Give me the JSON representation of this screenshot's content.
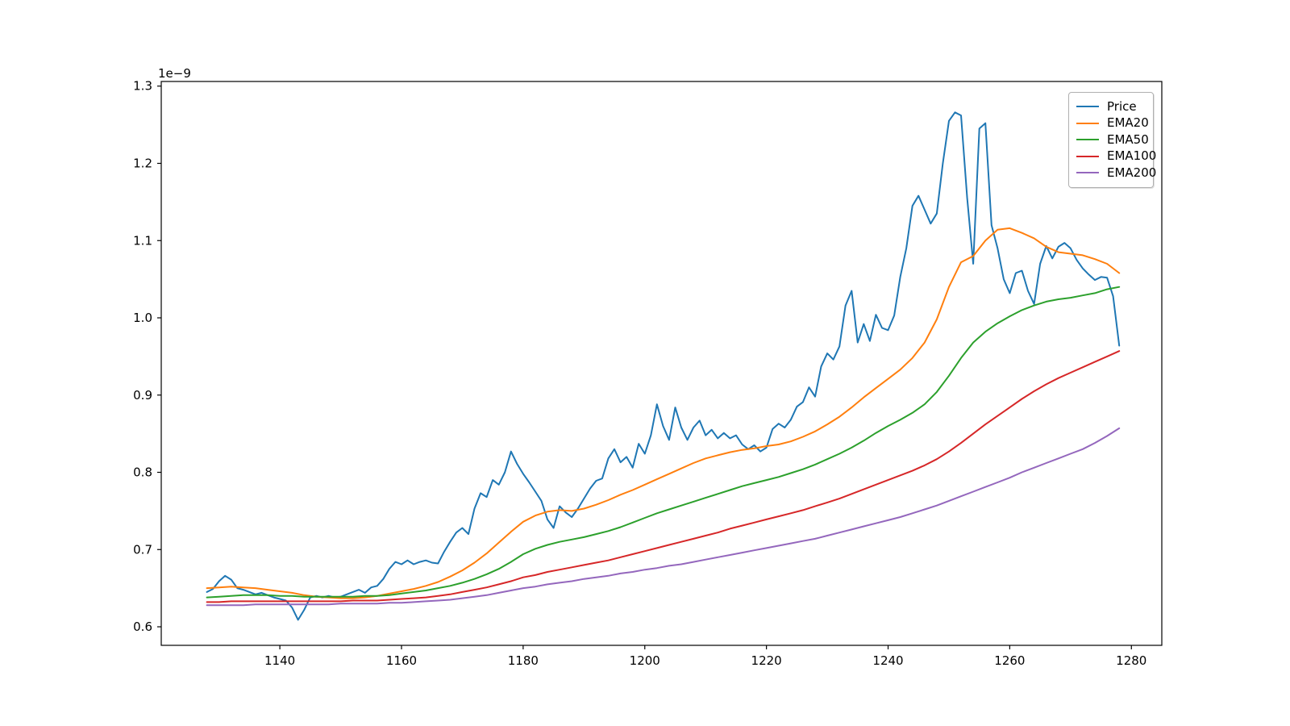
{
  "figure": {
    "background": "#ffffff",
    "border_color": "#000000"
  },
  "chart_data": {
    "type": "line",
    "title": "",
    "xlabel": "",
    "ylabel": "",
    "scale_label": "1e−9",
    "grid": false,
    "legend_position": "upper right",
    "legend_labels": [
      "Price",
      "EMA20",
      "EMA50",
      "EMA100",
      "EMA200"
    ],
    "xlim": [
      1120.5,
      1285.0
    ],
    "ylim": [
      0.576,
      1.306
    ],
    "xticks": [
      1140,
      1160,
      1180,
      1200,
      1220,
      1240,
      1260,
      1280
    ],
    "yticks": [
      0.6,
      0.7,
      0.8,
      0.9,
      1.0,
      1.1,
      1.2,
      1.3
    ],
    "series": [
      {
        "name": "Price",
        "color": "#1f77b4",
        "x_start": 1128,
        "x_step": 1,
        "values": [
          0.645,
          0.649,
          0.659,
          0.666,
          0.661,
          0.65,
          0.648,
          0.645,
          0.642,
          0.644,
          0.641,
          0.638,
          0.636,
          0.634,
          0.625,
          0.609,
          0.622,
          0.638,
          0.64,
          0.638,
          0.64,
          0.638,
          0.639,
          0.642,
          0.645,
          0.648,
          0.644,
          0.651,
          0.653,
          0.662,
          0.675,
          0.684,
          0.681,
          0.686,
          0.681,
          0.684,
          0.686,
          0.683,
          0.682,
          0.697,
          0.71,
          0.722,
          0.728,
          0.72,
          0.753,
          0.773,
          0.768,
          0.79,
          0.784,
          0.8,
          0.827,
          0.811,
          0.798,
          0.787,
          0.775,
          0.763,
          0.739,
          0.728,
          0.756,
          0.748,
          0.742,
          0.753,
          0.766,
          0.779,
          0.789,
          0.792,
          0.818,
          0.83,
          0.813,
          0.82,
          0.806,
          0.837,
          0.824,
          0.848,
          0.888,
          0.86,
          0.842,
          0.884,
          0.858,
          0.842,
          0.858,
          0.867,
          0.848,
          0.855,
          0.844,
          0.851,
          0.844,
          0.848,
          0.836,
          0.83,
          0.835,
          0.827,
          0.832,
          0.856,
          0.863,
          0.858,
          0.868,
          0.885,
          0.891,
          0.91,
          0.898,
          0.937,
          0.954,
          0.946,
          0.963,
          1.016,
          1.035,
          0.968,
          0.992,
          0.97,
          1.004,
          0.987,
          0.984,
          1.003,
          1.053,
          1.09,
          1.145,
          1.158,
          1.14,
          1.122,
          1.135,
          1.2,
          1.255,
          1.266,
          1.262,
          1.155,
          1.07,
          1.245,
          1.252,
          1.12,
          1.09,
          1.05,
          1.032,
          1.058,
          1.061,
          1.035,
          1.018,
          1.07,
          1.093,
          1.077,
          1.092,
          1.097,
          1.09,
          1.075,
          1.064,
          1.056,
          1.049,
          1.053,
          1.052,
          1.028,
          0.964
        ]
      },
      {
        "name": "EMA20",
        "color": "#ff7f0e",
        "x_start": 1128,
        "x_step": 2,
        "values": [
          0.65,
          0.651,
          0.652,
          0.651,
          0.65,
          0.648,
          0.646,
          0.644,
          0.641,
          0.639,
          0.638,
          0.637,
          0.637,
          0.638,
          0.64,
          0.643,
          0.646,
          0.649,
          0.653,
          0.658,
          0.665,
          0.673,
          0.683,
          0.695,
          0.709,
          0.723,
          0.736,
          0.744,
          0.749,
          0.751,
          0.75,
          0.753,
          0.758,
          0.764,
          0.771,
          0.777,
          0.784,
          0.791,
          0.798,
          0.805,
          0.812,
          0.818,
          0.822,
          0.826,
          0.829,
          0.831,
          0.834,
          0.836,
          0.84,
          0.846,
          0.853,
          0.862,
          0.872,
          0.884,
          0.897,
          0.909,
          0.921,
          0.933,
          0.948,
          0.968,
          0.998,
          1.04,
          1.072,
          1.08,
          1.1,
          1.114,
          1.116,
          1.11,
          1.103,
          1.092,
          1.085,
          1.083,
          1.081,
          1.076,
          1.07,
          1.058
        ]
      },
      {
        "name": "EMA50",
        "color": "#2ca02c",
        "x_start": 1128,
        "x_step": 2,
        "values": [
          0.638,
          0.639,
          0.64,
          0.641,
          0.641,
          0.641,
          0.64,
          0.64,
          0.639,
          0.639,
          0.639,
          0.639,
          0.639,
          0.64,
          0.64,
          0.641,
          0.643,
          0.645,
          0.647,
          0.65,
          0.653,
          0.657,
          0.662,
          0.668,
          0.675,
          0.684,
          0.694,
          0.701,
          0.706,
          0.71,
          0.713,
          0.716,
          0.72,
          0.724,
          0.729,
          0.735,
          0.741,
          0.747,
          0.752,
          0.757,
          0.762,
          0.767,
          0.772,
          0.777,
          0.782,
          0.786,
          0.79,
          0.794,
          0.799,
          0.804,
          0.81,
          0.817,
          0.824,
          0.832,
          0.841,
          0.851,
          0.86,
          0.868,
          0.877,
          0.888,
          0.904,
          0.925,
          0.948,
          0.968,
          0.982,
          0.993,
          1.002,
          1.01,
          1.016,
          1.021,
          1.024,
          1.026,
          1.029,
          1.032,
          1.037,
          1.04
        ]
      },
      {
        "name": "EMA100",
        "color": "#d62728",
        "x_start": 1128,
        "x_step": 2,
        "values": [
          0.632,
          0.632,
          0.633,
          0.633,
          0.633,
          0.633,
          0.633,
          0.633,
          0.633,
          0.633,
          0.633,
          0.633,
          0.634,
          0.634,
          0.634,
          0.635,
          0.636,
          0.637,
          0.638,
          0.64,
          0.642,
          0.645,
          0.648,
          0.651,
          0.655,
          0.659,
          0.664,
          0.667,
          0.671,
          0.674,
          0.677,
          0.68,
          0.683,
          0.686,
          0.69,
          0.694,
          0.698,
          0.702,
          0.706,
          0.71,
          0.714,
          0.718,
          0.722,
          0.727,
          0.731,
          0.735,
          0.739,
          0.743,
          0.747,
          0.751,
          0.756,
          0.761,
          0.766,
          0.772,
          0.778,
          0.784,
          0.79,
          0.796,
          0.802,
          0.809,
          0.817,
          0.827,
          0.838,
          0.85,
          0.862,
          0.873,
          0.884,
          0.895,
          0.905,
          0.914,
          0.922,
          0.929,
          0.936,
          0.943,
          0.95,
          0.957
        ]
      },
      {
        "name": "EMA200",
        "color": "#9467bd",
        "x_start": 1128,
        "x_step": 2,
        "values": [
          0.628,
          0.628,
          0.628,
          0.628,
          0.629,
          0.629,
          0.629,
          0.629,
          0.629,
          0.629,
          0.629,
          0.63,
          0.63,
          0.63,
          0.63,
          0.631,
          0.631,
          0.632,
          0.633,
          0.634,
          0.635,
          0.637,
          0.639,
          0.641,
          0.644,
          0.647,
          0.65,
          0.652,
          0.655,
          0.657,
          0.659,
          0.662,
          0.664,
          0.666,
          0.669,
          0.671,
          0.674,
          0.676,
          0.679,
          0.681,
          0.684,
          0.687,
          0.69,
          0.693,
          0.696,
          0.699,
          0.702,
          0.705,
          0.708,
          0.711,
          0.714,
          0.718,
          0.722,
          0.726,
          0.73,
          0.734,
          0.738,
          0.742,
          0.747,
          0.752,
          0.757,
          0.763,
          0.769,
          0.775,
          0.781,
          0.787,
          0.793,
          0.8,
          0.806,
          0.812,
          0.818,
          0.824,
          0.83,
          0.838,
          0.847,
          0.857
        ]
      }
    ]
  }
}
